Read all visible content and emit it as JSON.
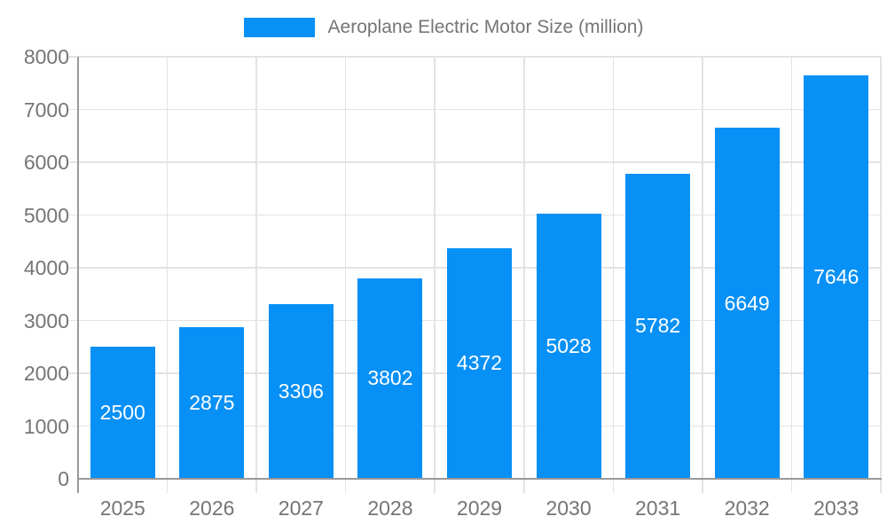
{
  "chart_data": {
    "type": "bar",
    "title": "Aeroplane Electric Motor Size (million)",
    "categories": [
      "2025",
      "2026",
      "2027",
      "2028",
      "2029",
      "2030",
      "2031",
      "2032",
      "2033"
    ],
    "values": [
      2500,
      2875,
      3306,
      3802,
      4372,
      5028,
      5782,
      6649,
      7646
    ],
    "xlabel": "",
    "ylabel": "",
    "ylim": [
      0,
      8000
    ],
    "y_ticks": [
      0,
      1000,
      2000,
      3000,
      4000,
      5000,
      6000,
      7000,
      8000
    ],
    "grid": true,
    "legend_position": "top",
    "colors": {
      "bar": "#0790f6",
      "grid": "#e3e3e3",
      "axis": "#999999",
      "text": "#757575",
      "value_label": "#ffffff",
      "background": "#ffffff"
    }
  }
}
